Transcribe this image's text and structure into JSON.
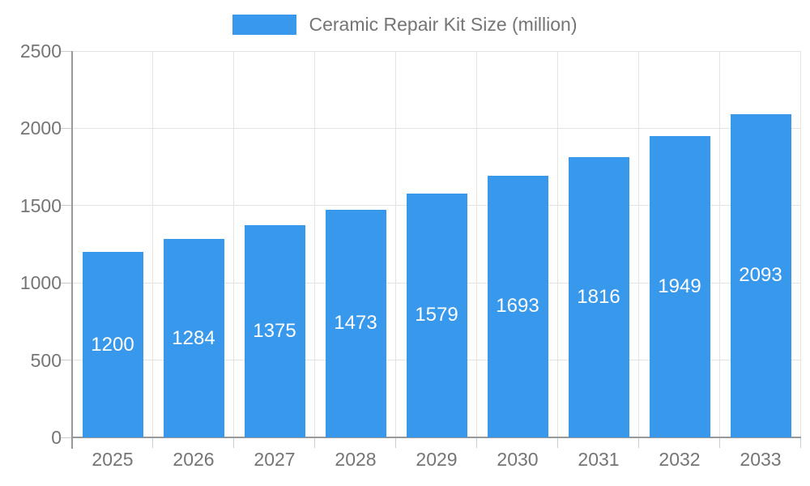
{
  "chart_data": {
    "type": "bar",
    "title": "Ceramic Repair Kit Size (million)",
    "categories": [
      "2025",
      "2026",
      "2027",
      "2028",
      "2029",
      "2030",
      "2031",
      "2032",
      "2033"
    ],
    "series": [
      {
        "name": "Ceramic Repair Kit Size (million)",
        "values": [
          1200,
          1284,
          1375,
          1473,
          1579,
          1693,
          1816,
          1949,
          2093
        ]
      }
    ],
    "xlabel": "",
    "ylabel": "",
    "ylim": [
      0,
      2500
    ],
    "yticks": [
      0,
      500,
      1000,
      1500,
      2000,
      2500
    ],
    "grid": true,
    "legend_position": "top",
    "bar_labels_shown": true,
    "colors": {
      "bar": "#3899EC",
      "bar_label": "#ffffff",
      "axis_text": "#757575",
      "gridline": "#e3e3e3",
      "axis_line": "#999999",
      "tick": "#cccccc",
      "background": "#ffffff"
    }
  }
}
